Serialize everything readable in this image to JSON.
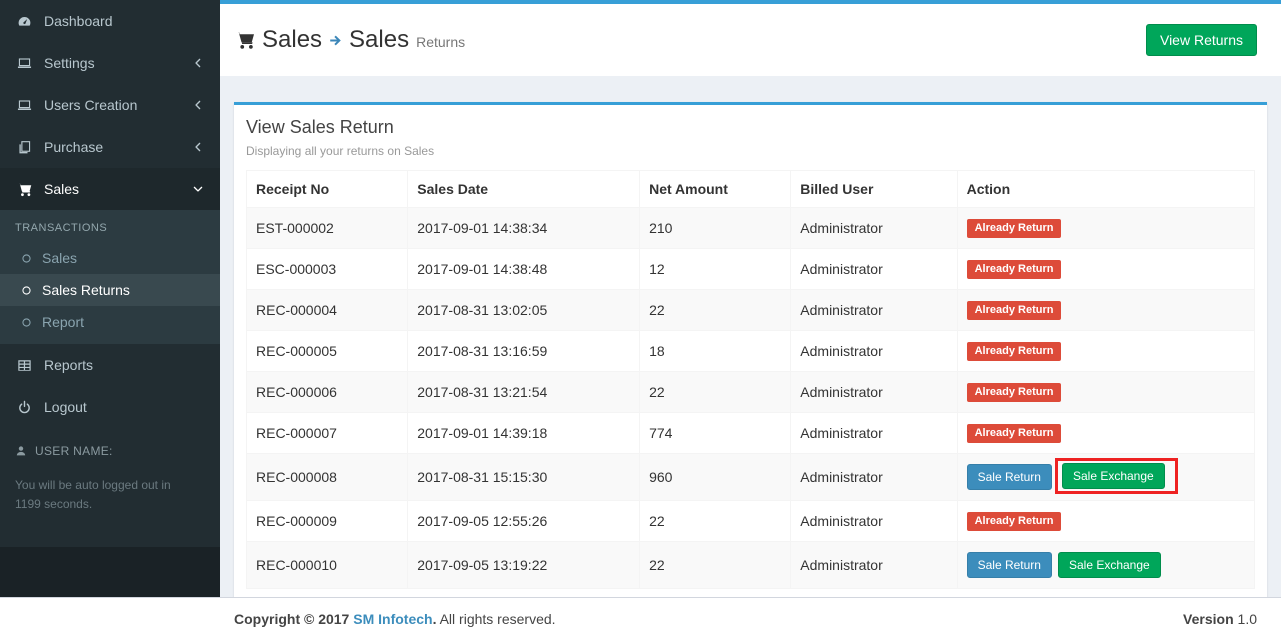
{
  "colors": {
    "accent": "#379fd7",
    "primary_btn": "#3c8dbc",
    "success": "#00a65a",
    "danger": "#dd4b39",
    "highlight": "#ee2222",
    "sidebar_bg": "#222d32",
    "sidebar_submenu_bg": "#2c3b41",
    "content_bg": "#ecf0f5"
  },
  "sidebar": {
    "items": [
      {
        "label": "Dashboard",
        "icon": "gauge-icon"
      },
      {
        "label": "Settings",
        "icon": "laptop-icon",
        "chevron": "left"
      },
      {
        "label": "Users Creation",
        "icon": "laptop-icon",
        "chevron": "left"
      },
      {
        "label": "Purchase",
        "icon": "files-icon",
        "chevron": "left"
      },
      {
        "label": "Sales",
        "icon": "cart-icon",
        "chevron": "down",
        "active": true,
        "section_label": "TRANSACTIONS",
        "children": [
          {
            "label": "Sales",
            "icon": "circle-icon"
          },
          {
            "label": "Sales Returns",
            "icon": "circle-icon",
            "active": true
          },
          {
            "label": "Report",
            "icon": "circle-icon"
          }
        ]
      },
      {
        "label": "Reports",
        "icon": "grid-icon"
      },
      {
        "label": "Logout",
        "icon": "power-icon"
      }
    ],
    "user_label": "USER NAME:",
    "logout_notice": "You will be auto logged out in 1199 seconds."
  },
  "header": {
    "title_icon": "cart-icon",
    "title_primary": "Sales",
    "title_secondary": "Sales",
    "title_tertiary": "Returns",
    "button_label": "View Returns"
  },
  "panel": {
    "title": "View Sales Return",
    "subtitle": "Displaying all your returns on Sales"
  },
  "table": {
    "headers": [
      "Receipt No",
      "Sales Date",
      "Net Amount",
      "Billed User",
      "Action"
    ],
    "rows": [
      {
        "receipt_no": "EST-000002",
        "sales_date": "2017-09-01 14:38:34",
        "net_amount": "210",
        "billed_user": "Administrator",
        "actions": [
          {
            "label": "Already Return",
            "style": "danger"
          }
        ]
      },
      {
        "receipt_no": "ESC-000003",
        "sales_date": "2017-09-01 14:38:48",
        "net_amount": "12",
        "billed_user": "Administrator",
        "actions": [
          {
            "label": "Already Return",
            "style": "danger"
          }
        ]
      },
      {
        "receipt_no": "REC-000004",
        "sales_date": "2017-08-31 13:02:05",
        "net_amount": "22",
        "billed_user": "Administrator",
        "actions": [
          {
            "label": "Already Return",
            "style": "danger"
          }
        ]
      },
      {
        "receipt_no": "REC-000005",
        "sales_date": "2017-08-31 13:16:59",
        "net_amount": "18",
        "billed_user": "Administrator",
        "actions": [
          {
            "label": "Already Return",
            "style": "danger"
          }
        ]
      },
      {
        "receipt_no": "REC-000006",
        "sales_date": "2017-08-31 13:21:54",
        "net_amount": "22",
        "billed_user": "Administrator",
        "actions": [
          {
            "label": "Already Return",
            "style": "danger"
          }
        ]
      },
      {
        "receipt_no": "REC-000007",
        "sales_date": "2017-09-01 14:39:18",
        "net_amount": "774",
        "billed_user": "Administrator",
        "actions": [
          {
            "label": "Already Return",
            "style": "danger"
          }
        ]
      },
      {
        "receipt_no": "REC-000008",
        "sales_date": "2017-08-31 15:15:30",
        "net_amount": "960",
        "billed_user": "Administrator",
        "actions": [
          {
            "label": "Sale Return",
            "style": "primary"
          },
          {
            "label": "Sale Exchange",
            "style": "success",
            "highlighted": true
          }
        ]
      },
      {
        "receipt_no": "REC-000009",
        "sales_date": "2017-09-05 12:55:26",
        "net_amount": "22",
        "billed_user": "Administrator",
        "actions": [
          {
            "label": "Already Return",
            "style": "danger"
          }
        ]
      },
      {
        "receipt_no": "REC-000010",
        "sales_date": "2017-09-05 13:19:22",
        "net_amount": "22",
        "billed_user": "Administrator",
        "actions": [
          {
            "label": "Sale Return",
            "style": "primary"
          },
          {
            "label": "Sale Exchange",
            "style": "success"
          }
        ]
      }
    ]
  },
  "footer": {
    "copyright_prefix": "Copyright © 2017",
    "company": "SM Infotech",
    "copyright_suffix": ".",
    "rights": "All rights reserved.",
    "version_label": "Version",
    "version_value": "1.0"
  }
}
